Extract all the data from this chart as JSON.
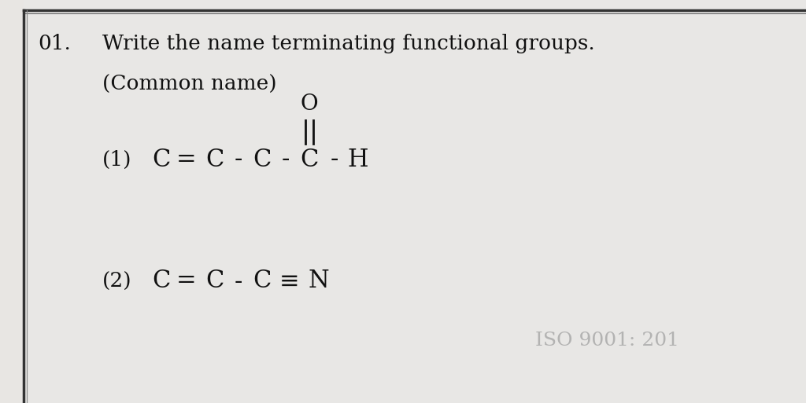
{
  "background_color": "#e8e6e3",
  "border_left_color": "#444444",
  "border_top_color": "#888888",
  "title_num": "01.",
  "title_text": "Write the name terminating functional groups.",
  "subtitle": "(Common name)",
  "q1_label": "(1)",
  "q1_oxygen": "O",
  "q2_label": "(2)",
  "watermark": "ISO 9001: 201",
  "title_fontsize": 19,
  "subtitle_fontsize": 19,
  "formula_fontsize": 22,
  "label_fontsize": 19,
  "watermark_fontsize": 18,
  "fig_width": 10.24,
  "fig_height": 5.13,
  "text_color": "#111111",
  "watermark_color": "#aaaaaa"
}
